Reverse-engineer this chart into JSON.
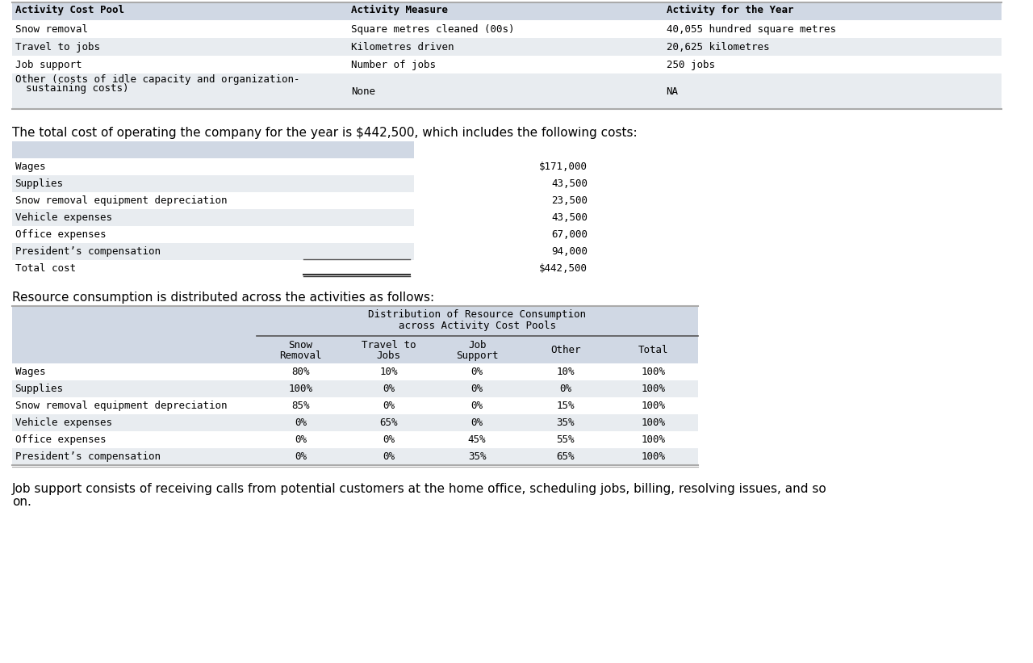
{
  "bg_color": "#ffffff",
  "table_header_bg": "#d0d8e4",
  "table_row_bg_alt": "#e8ecf0",
  "table_row_bg_white": "#ffffff",
  "font_family": "monospace",
  "table1_headers": [
    "Activity Cost Pool",
    "Activity Measure",
    "Activity for the Year"
  ],
  "table1_rows": [
    [
      "Snow removal",
      "Square metres cleaned (00s)",
      "40,055 hundred square metres"
    ],
    [
      "Travel to jobs",
      "Kilometres driven",
      "20,625 kilometres"
    ],
    [
      "Job support",
      "Number of jobs",
      "250 jobs"
    ],
    [
      "Other (costs of idle capacity and organization-\n  sustaining costs)",
      "None",
      "NA"
    ]
  ],
  "paragraph1": "The total cost of operating the company for the year is $442,500, which includes the following costs:",
  "table2_rows": [
    [
      "Wages",
      "$171,000"
    ],
    [
      "Supplies",
      "43,500"
    ],
    [
      "Snow removal equipment depreciation",
      "23,500"
    ],
    [
      "Vehicle expenses",
      "43,500"
    ],
    [
      "Office expenses",
      "67,000"
    ],
    [
      "President’s compensation",
      "94,000"
    ],
    [
      "Total cost",
      "$442,500"
    ]
  ],
  "paragraph2": "Resource consumption is distributed across the activities as follows:",
  "table3_header1": "Distribution of Resource Consumption",
  "table3_header2": "across Activity Cost Pools",
  "table3_col_headers": [
    "",
    "Snow\nRemoval",
    "Travel to\nJobs",
    "Job\nSupport",
    "Other",
    "Total"
  ],
  "table3_rows": [
    [
      "Wages",
      "80%",
      "10%",
      "0%",
      "10%",
      "100%"
    ],
    [
      "Supplies",
      "100%",
      "0%",
      "0%",
      "0%",
      "100%"
    ],
    [
      "Snow removal equipment depreciation",
      "85%",
      "0%",
      "0%",
      "15%",
      "100%"
    ],
    [
      "Vehicle expenses",
      "0%",
      "65%",
      "0%",
      "35%",
      "100%"
    ],
    [
      "Office expenses",
      "0%",
      "0%",
      "45%",
      "55%",
      "100%"
    ],
    [
      "President’s compensation",
      "0%",
      "0%",
      "35%",
      "65%",
      "100%"
    ]
  ],
  "paragraph3": "Job support consists of receiving calls from potential customers at the home office, scheduling jobs, billing, resolving issues, and so\non."
}
